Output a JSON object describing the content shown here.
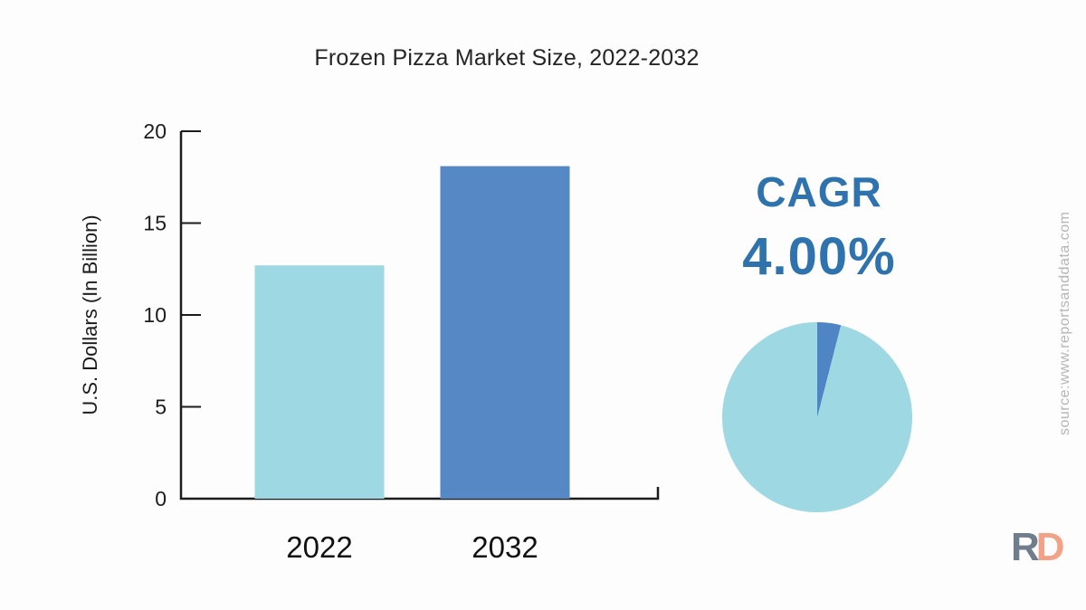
{
  "title": "Frozen Pizza Market Size, 2022-2032",
  "chart_data": [
    {
      "type": "bar",
      "title": "Frozen Pizza Market Size, 2022-2032",
      "categories": [
        "2022",
        "2032"
      ],
      "values": [
        12.7,
        18.1
      ],
      "colors": [
        "#9ed8e3",
        "#5588c5"
      ],
      "xlabel": "",
      "ylabel": "U.S. Dollars (In Billion)",
      "ylim": [
        0,
        20
      ],
      "yticks": [
        0,
        5,
        10,
        15,
        20
      ],
      "grid": false,
      "legend": null,
      "axis_color": "#1c1c1c"
    },
    {
      "type": "pie",
      "slices": [
        {
          "label": "CAGR",
          "value": 4,
          "color": "#4f85c4"
        },
        {
          "label": "remainder",
          "value": 96,
          "color": "#9ed8e3"
        }
      ],
      "start_angle_deg": 0,
      "direction": "clockwise",
      "annotation": "CAGR 4.00%"
    }
  ],
  "cagr": {
    "label": "CAGR",
    "value": "4.00%",
    "color": "#2e73ae"
  },
  "source": {
    "text": "source:www.reportsanddata.com",
    "color": "#b5b5b5"
  },
  "logo": {
    "r": "R",
    "d": "D",
    "r_color": "#6f7d8c",
    "d_color": "#f2a287"
  }
}
